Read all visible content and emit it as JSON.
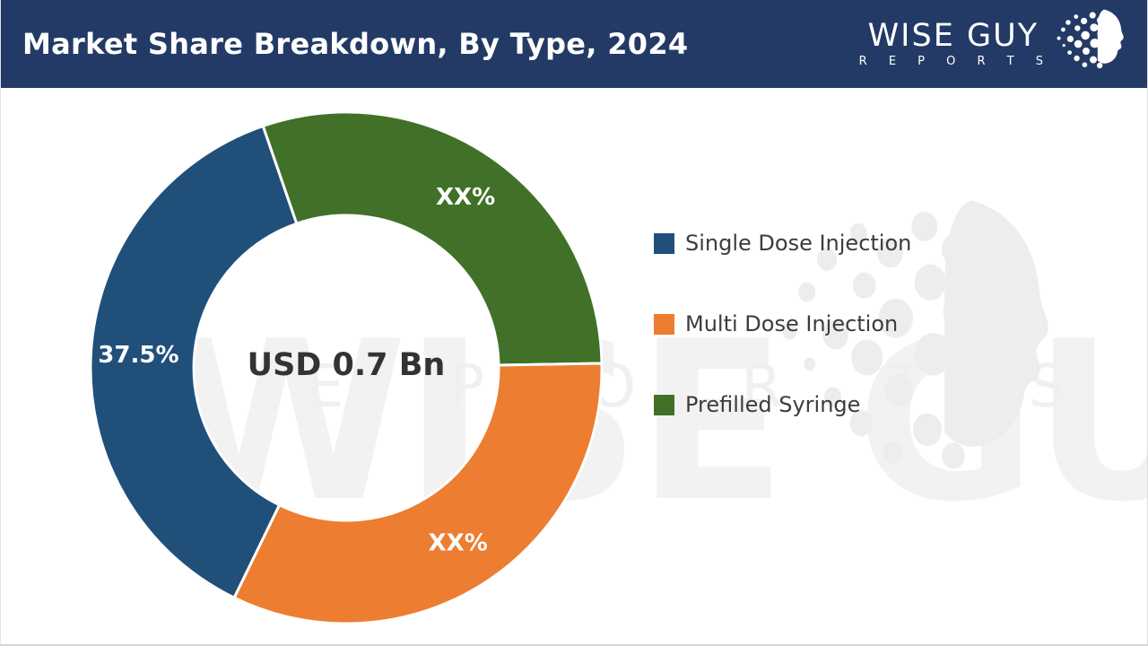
{
  "header": {
    "title": "Market Share Breakdown, By Type, 2024",
    "bg_color": "#233A66",
    "logo": {
      "line1": "WISE GUY",
      "line2": "R E P O R T S"
    }
  },
  "watermark": {
    "line1": "WISE GUY",
    "line2": "R E P O R T S"
  },
  "chart_data": {
    "type": "pie",
    "subtype": "donut",
    "title": "Market Share Breakdown, By Type, 2024",
    "center_label": "USD 0.7 Bn",
    "start_angle_deg": 341,
    "direction": "clockwise",
    "segments": [
      {
        "label": "Prefilled Syringe",
        "value_pct": 30,
        "display": "XX%",
        "color": "#417128"
      },
      {
        "label": "Multi Dose Injection",
        "value_pct": 32.5,
        "display": "XX%",
        "color": "#ED7D31"
      },
      {
        "label": "Single Dose Injection",
        "value_pct": 37.5,
        "display": "37.5%",
        "color": "#20507A"
      }
    ],
    "legend": [
      {
        "label": "Single Dose Injection",
        "color": "#20507A"
      },
      {
        "label": "Multi Dose Injection",
        "color": "#ED7D31"
      },
      {
        "label": "Prefilled Syringe",
        "color": "#417128"
      }
    ],
    "legend_position": "right",
    "gap_line_color": "#ffffff"
  }
}
